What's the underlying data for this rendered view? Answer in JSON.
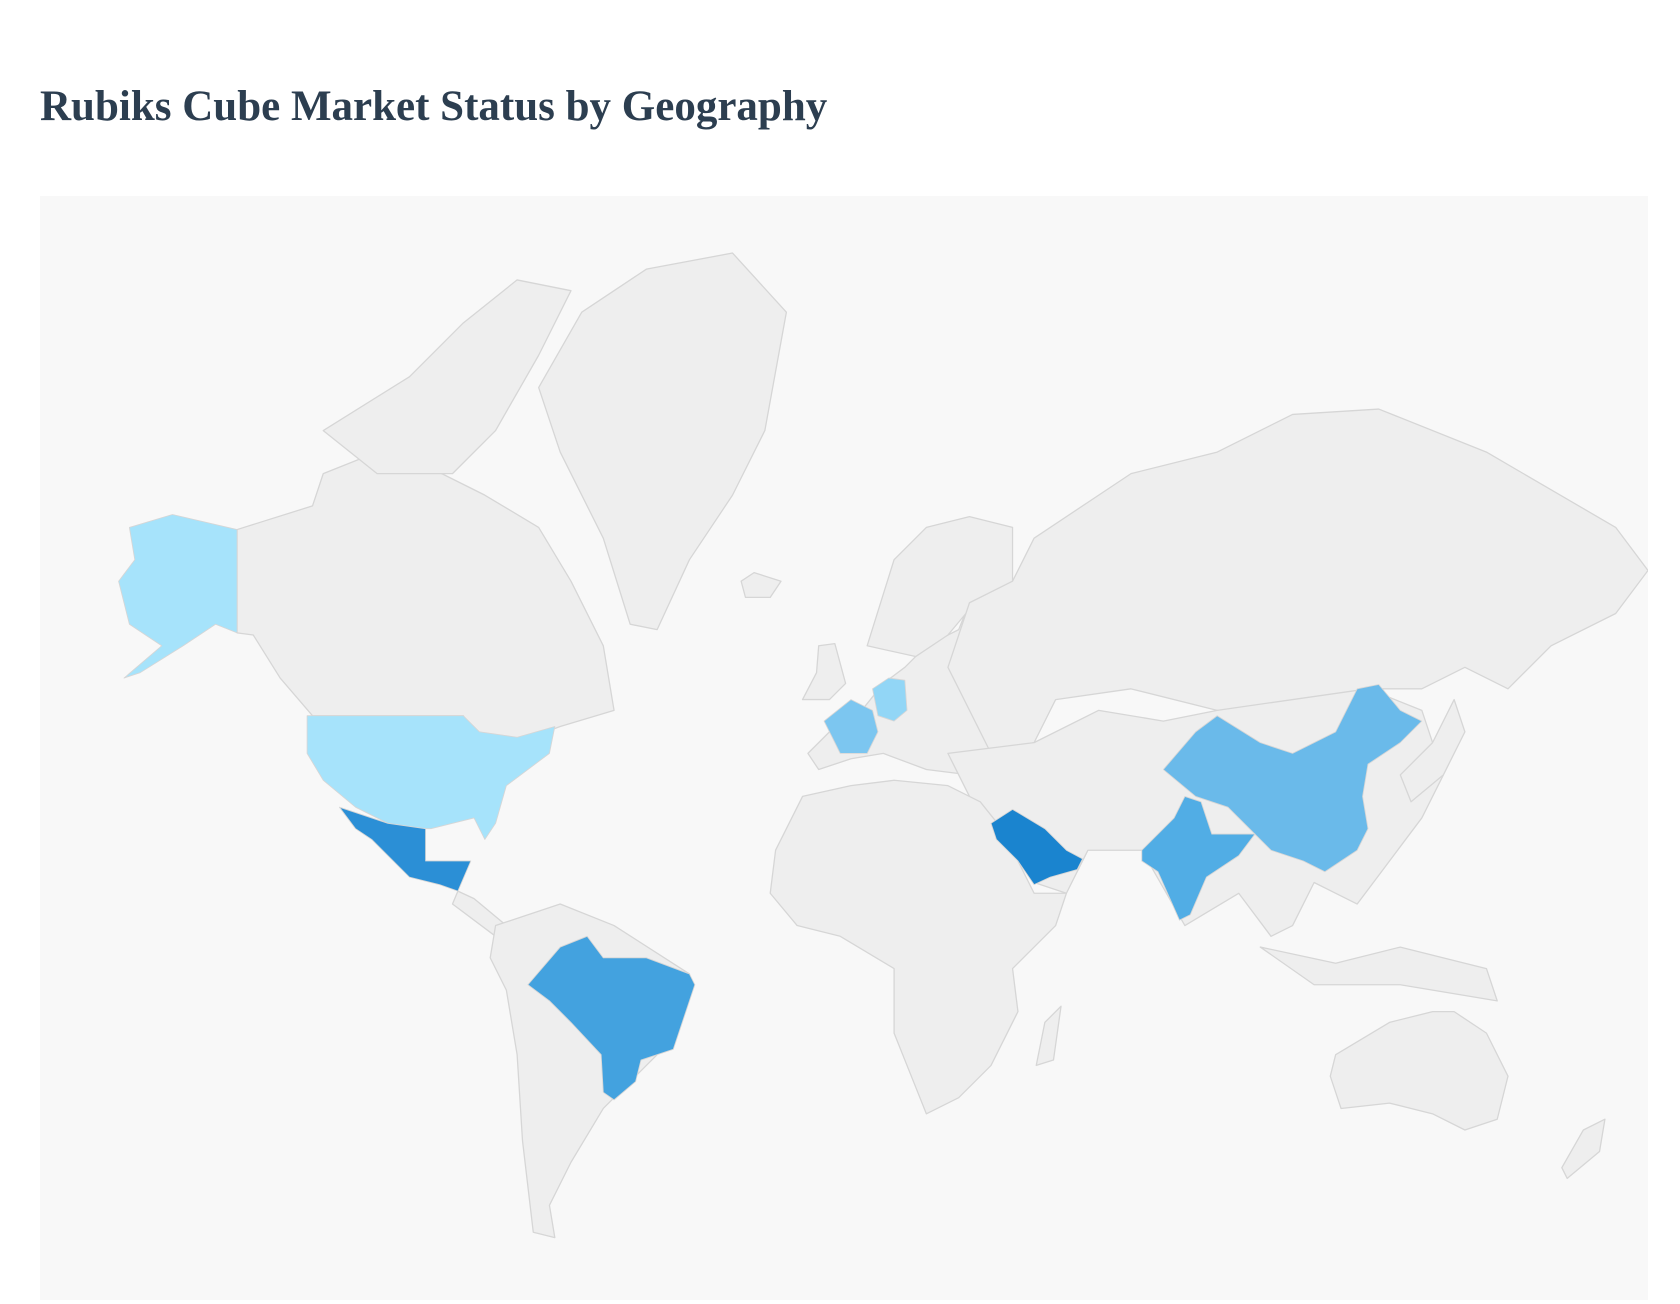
{
  "title": "Rubiks Cube Market Status by Geography",
  "chart_data": {
    "type": "geo",
    "region": "world",
    "background_color": "#f8f8f8",
    "default_land_color": "#eeeeee",
    "highlighted": [
      {
        "country": "United States",
        "color": "#a6e3fb"
      },
      {
        "country": "Germany",
        "color": "#92d6f6"
      },
      {
        "country": "France",
        "color": "#7cc6f0"
      },
      {
        "country": "China",
        "color": "#6abaea"
      },
      {
        "country": "India",
        "color": "#51ade5"
      },
      {
        "country": "Brazil",
        "color": "#43a2df"
      },
      {
        "country": "Mexico",
        "color": "#2b8fd6"
      },
      {
        "country": "Saudi Arabia",
        "color": "#1a84cf"
      }
    ]
  }
}
